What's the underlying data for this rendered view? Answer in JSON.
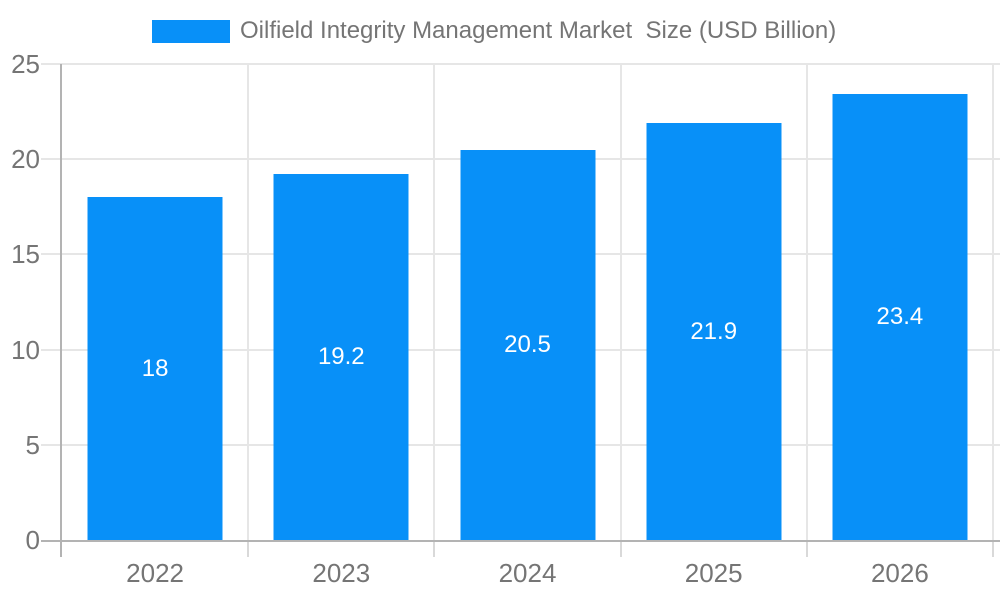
{
  "chart_data": {
    "type": "bar",
    "title": "Oilfield Integrity Management Market  Size (USD Billion)",
    "legend": {
      "label": "Oilfield Integrity Management Market  Size (USD Billion)",
      "position": "top"
    },
    "categories": [
      "2022",
      "2023",
      "2024",
      "2025",
      "2026"
    ],
    "series": [
      {
        "name": "Oilfield Integrity Management Market  Size (USD Billion)",
        "values": [
          18,
          19.2,
          20.5,
          21.9,
          23.4
        ],
        "labels": [
          "18",
          "19.2",
          "20.5",
          "21.9",
          "23.4"
        ]
      }
    ],
    "xlabel": "",
    "ylabel": "",
    "ylim": [
      0,
      25
    ],
    "yticks": [
      0,
      5,
      10,
      15,
      20,
      25
    ],
    "grid": true,
    "colors": {
      "bar": "#0890f8",
      "axis_label": "#757575",
      "grid_line": "#e6e6e6",
      "axis_line": "#b3b3b3",
      "value_label": "#ffffff",
      "background": "#ffffff"
    }
  }
}
